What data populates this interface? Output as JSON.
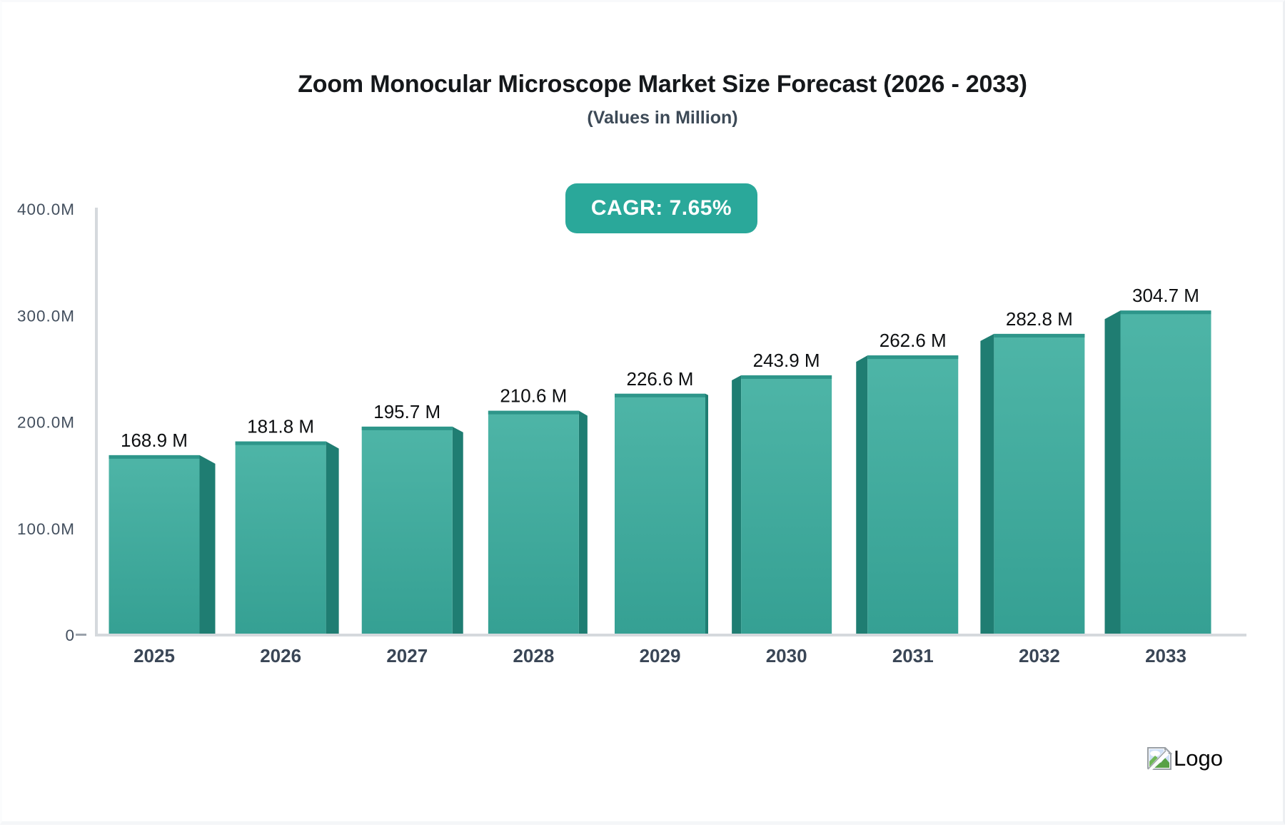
{
  "header": {
    "title": "Zoom Monocular Microscope Market Size Forecast (2026 - 2033)",
    "subtitle": "(Values in Million)"
  },
  "badge": {
    "label": "CAGR: 7.65%",
    "color": "#2aa89a"
  },
  "chart_data": {
    "type": "bar",
    "title": "Zoom Monocular Microscope Market Size Forecast (2026 - 2033)",
    "subtitle": "(Values in Million)",
    "cagr_pct": 7.65,
    "categories": [
      "2025",
      "2026",
      "2027",
      "2028",
      "2029",
      "2030",
      "2031",
      "2032",
      "2033"
    ],
    "values": [
      168.9,
      181.8,
      195.7,
      210.6,
      226.6,
      243.9,
      262.6,
      282.8,
      304.7
    ],
    "bar_labels": [
      "168.9 M",
      "181.8 M",
      "195.7 M",
      "210.6 M",
      "226.6 M",
      "243.9 M",
      "262.6 M",
      "282.8 M",
      "304.7 M"
    ],
    "y_ticks": [
      {
        "value": 400,
        "label": "400.0M"
      },
      {
        "value": 300,
        "label": "300.0M"
      },
      {
        "value": 200,
        "label": "200.0M"
      },
      {
        "value": 100,
        "label": "100.0M"
      },
      {
        "value": 0,
        "label": "0"
      }
    ],
    "ylim": [
      0,
      400
    ],
    "grid": false,
    "legend": false,
    "effect": "3d-bars-center-perspective",
    "colors": {
      "bar_face_top": "#4eb5a7",
      "bar_face_bottom": "#35a093",
      "bar_side": "#1f7d72",
      "bar_cap": "#2e968a",
      "axis_line": "#d5d9dd",
      "zero_tick": "#9aa2ab",
      "tick_text": "#434f5e",
      "year_text": "#3a4656",
      "value_text": "#0d0f11"
    }
  },
  "footer": {
    "logo_alt": "Logo"
  }
}
